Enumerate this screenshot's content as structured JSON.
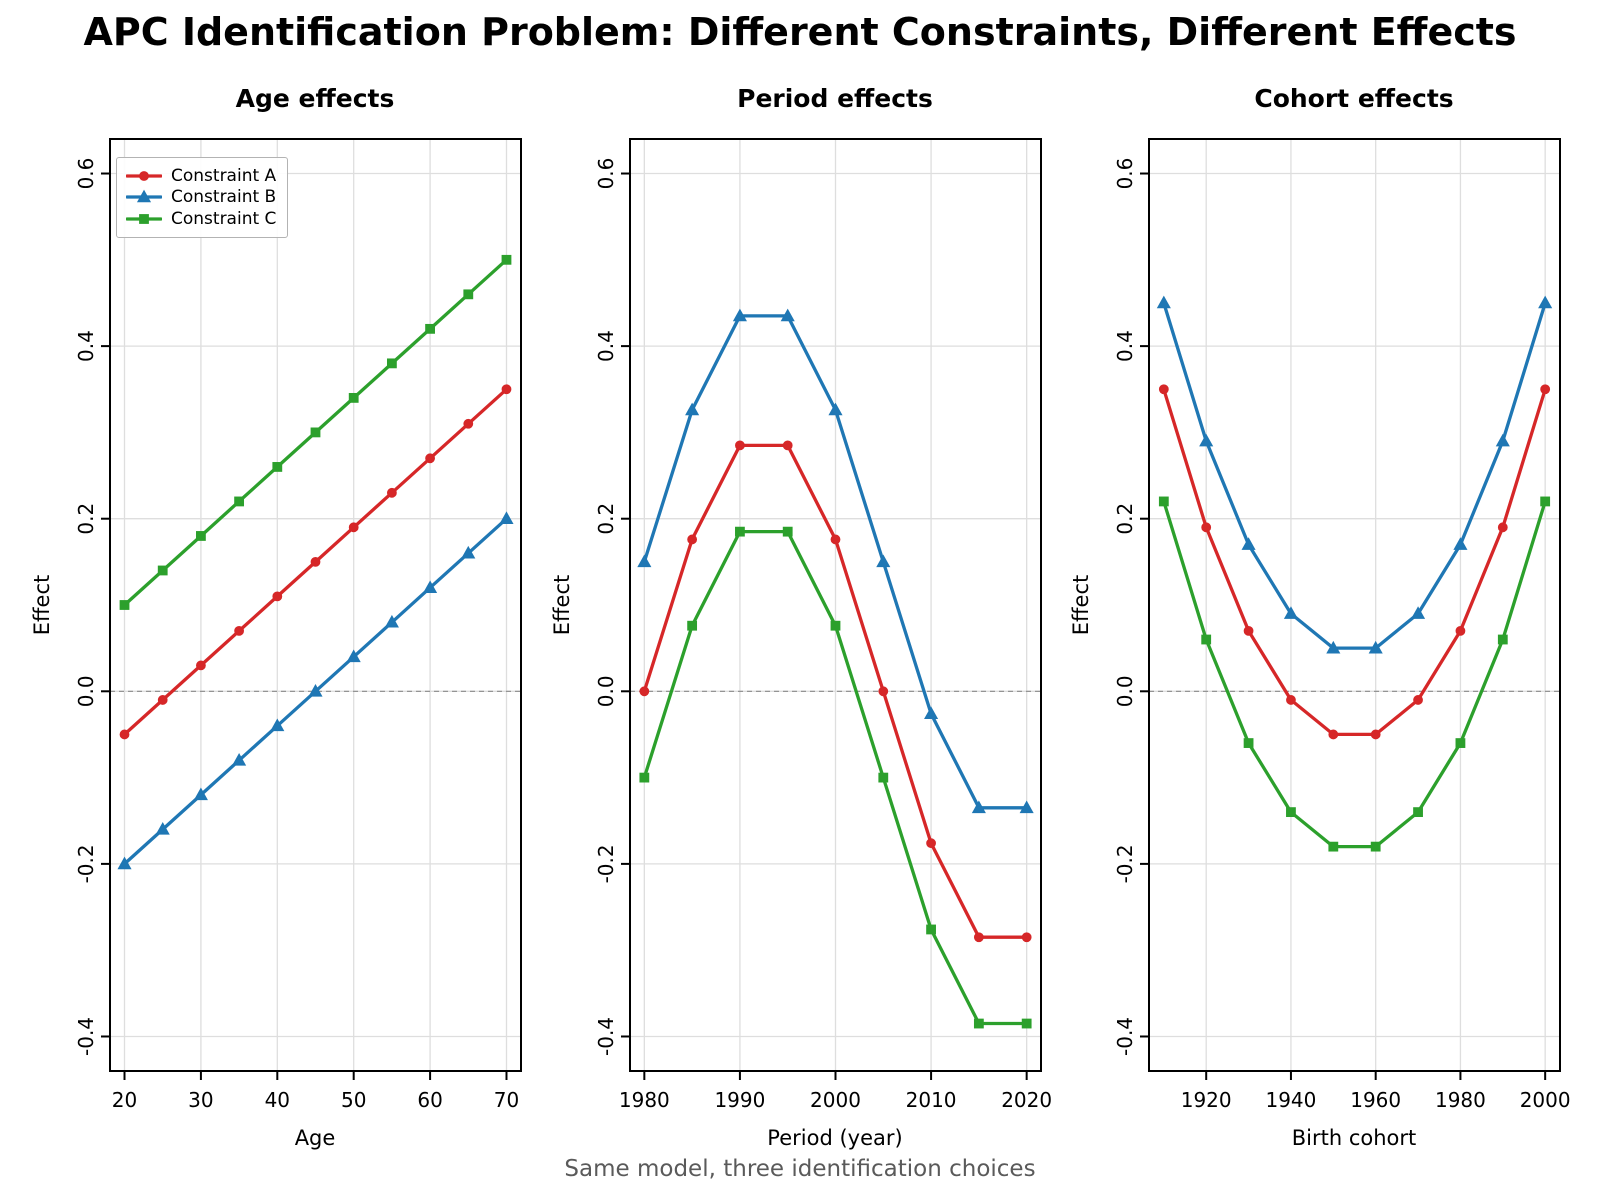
{
  "figure": {
    "title": "APC Identification Problem: Different Constraints, Different Effects",
    "caption": "Same model, three identification choices"
  },
  "colors": {
    "constraint_a": "#d62728",
    "constraint_b": "#1f77b4",
    "constraint_c": "#2ca02c",
    "grid": "#dedede",
    "spine": "#000000",
    "tick": "#000000",
    "zero_line": "#8a8a8a",
    "caption": "#5a5a5a",
    "legend_border": "#b3b3b3",
    "background": "#ffffff"
  },
  "legend": {
    "position": "upper left of Age effects panel",
    "items": [
      {
        "label": "Constraint A",
        "marker": "circle",
        "color": "#d62728"
      },
      {
        "label": "Constraint B",
        "marker": "triangle",
        "color": "#1f77b4"
      },
      {
        "label": "Constraint C",
        "marker": "square",
        "color": "#2ca02c"
      }
    ]
  },
  "chart_data": [
    {
      "type": "line",
      "title": "Age effects",
      "xlabel": "Age",
      "ylabel": "Effect",
      "x": [
        20,
        25,
        30,
        35,
        40,
        45,
        50,
        55,
        60,
        65,
        70
      ],
      "xticks": [
        20,
        30,
        40,
        50,
        60,
        70
      ],
      "yticks": [
        0.6,
        0.4,
        0.2,
        0.0,
        -0.2,
        -0.4
      ],
      "xlim": [
        18.1,
        71.9
      ],
      "ylim": [
        -0.44,
        0.64
      ],
      "grid": true,
      "zero_line_dashed": true,
      "series": [
        {
          "name": "Constraint A",
          "marker": "circle",
          "color": "#d62728",
          "values": [
            -0.05,
            -0.01,
            0.03,
            0.07,
            0.11,
            0.15,
            0.19,
            0.23,
            0.27,
            0.31,
            0.35
          ]
        },
        {
          "name": "Constraint B",
          "marker": "triangle",
          "color": "#1f77b4",
          "values": [
            -0.2,
            -0.16,
            -0.12,
            -0.08,
            -0.04,
            0.0,
            0.04,
            0.08,
            0.12,
            0.16,
            0.2
          ]
        },
        {
          "name": "Constraint C",
          "marker": "square",
          "color": "#2ca02c",
          "values": [
            0.1,
            0.14,
            0.18,
            0.22,
            0.26,
            0.3,
            0.34,
            0.38,
            0.42,
            0.46,
            0.5
          ]
        }
      ]
    },
    {
      "type": "line",
      "title": "Period effects",
      "xlabel": "Period (year)",
      "ylabel": "Effect",
      "x": [
        1980,
        1985,
        1990,
        1995,
        2000,
        2005,
        2010,
        2015,
        2020
      ],
      "xticks": [
        1980,
        1990,
        2000,
        2010,
        2020
      ],
      "yticks": [
        0.6,
        0.4,
        0.2,
        0.0,
        -0.2,
        -0.4
      ],
      "xlim": [
        1978.5,
        2021.5
      ],
      "ylim": [
        -0.44,
        0.64
      ],
      "grid": true,
      "zero_line_dashed": true,
      "series": [
        {
          "name": "Constraint A",
          "marker": "circle",
          "color": "#d62728",
          "values": [
            0.0,
            0.176,
            0.285,
            0.285,
            0.176,
            0.0,
            -0.176,
            -0.285,
            -0.285
          ]
        },
        {
          "name": "Constraint B",
          "marker": "triangle",
          "color": "#1f77b4",
          "values": [
            0.15,
            0.326,
            0.435,
            0.435,
            0.326,
            0.15,
            -0.026,
            -0.135,
            -0.135
          ]
        },
        {
          "name": "Constraint C",
          "marker": "square",
          "color": "#2ca02c",
          "values": [
            -0.1,
            0.076,
            0.185,
            0.185,
            0.076,
            -0.1,
            -0.276,
            -0.385,
            -0.385
          ]
        }
      ]
    },
    {
      "type": "line",
      "title": "Cohort effects",
      "xlabel": "Birth cohort",
      "ylabel": "Effect",
      "x": [
        1910,
        1920,
        1930,
        1940,
        1950,
        1960,
        1970,
        1980,
        1990,
        2000
      ],
      "xticks": [
        1920,
        1940,
        1960,
        1980,
        2000
      ],
      "yticks": [
        0.6,
        0.4,
        0.2,
        0.0,
        -0.2,
        -0.4
      ],
      "xlim": [
        1906.5,
        2003.5
      ],
      "ylim": [
        -0.44,
        0.64
      ],
      "grid": true,
      "zero_line_dashed": true,
      "series": [
        {
          "name": "Constraint A",
          "marker": "circle",
          "color": "#d62728",
          "values": [
            0.35,
            0.19,
            0.07,
            -0.01,
            -0.05,
            -0.05,
            -0.01,
            0.07,
            0.19,
            0.35
          ]
        },
        {
          "name": "Constraint B",
          "marker": "triangle",
          "color": "#1f77b4",
          "values": [
            0.45,
            0.29,
            0.17,
            0.09,
            0.05,
            0.05,
            0.09,
            0.17,
            0.29,
            0.45
          ]
        },
        {
          "name": "Constraint C",
          "marker": "square",
          "color": "#2ca02c",
          "values": [
            0.22,
            0.06,
            -0.06,
            -0.14,
            -0.18,
            -0.18,
            -0.14,
            -0.06,
            0.06,
            0.22
          ]
        }
      ]
    }
  ]
}
